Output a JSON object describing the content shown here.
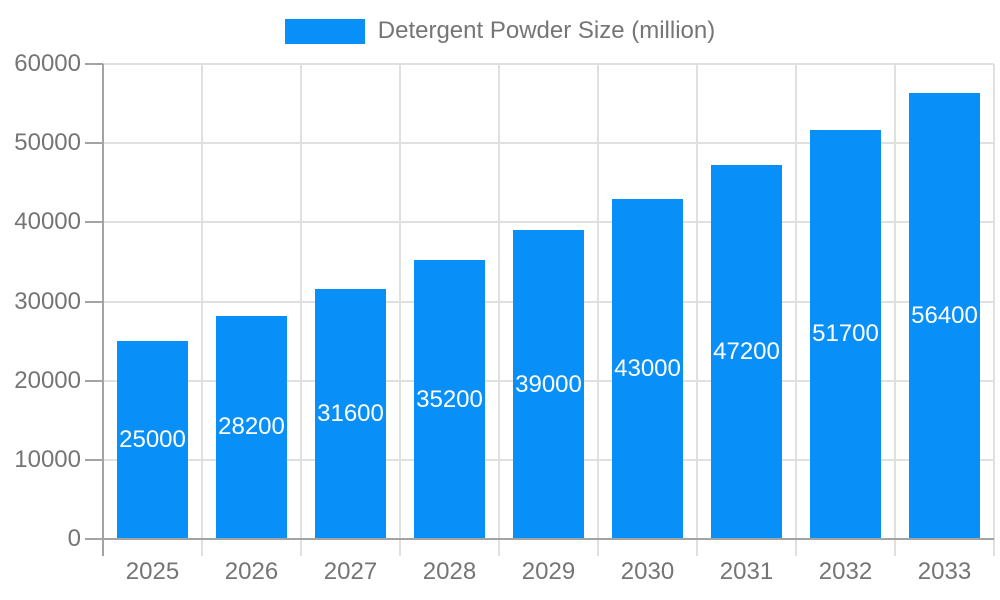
{
  "chart_data": {
    "type": "bar",
    "title": "Detergent Powder Size (million)",
    "legend": {
      "position": "top",
      "items": [
        {
          "label": "Detergent Powder Size (million)",
          "color": "#0890F8"
        }
      ]
    },
    "categories": [
      "2025",
      "2026",
      "2027",
      "2028",
      "2029",
      "2030",
      "2031",
      "2032",
      "2033"
    ],
    "series": [
      {
        "name": "Detergent Powder Size (million)",
        "values": [
          25000,
          28200,
          31600,
          35200,
          39000,
          43000,
          47200,
          51700,
          56400
        ]
      }
    ],
    "data_labels": [
      "25000",
      "28200",
      "31600",
      "35200",
      "39000",
      "43000",
      "47200",
      "51700",
      "56400"
    ],
    "xlabel": "",
    "ylabel": "",
    "ylim": [
      0,
      60000
    ],
    "yticks": [
      0,
      10000,
      20000,
      30000,
      40000,
      50000,
      60000
    ],
    "ytick_labels": [
      "0",
      "10000",
      "20000",
      "30000",
      "40000",
      "50000",
      "60000"
    ],
    "grid": true,
    "colors": {
      "bar": "#0890F8",
      "bar_label": "#FFFFFF",
      "axis": "#A3A3A3",
      "grid": "#E0E0E0",
      "text": "#757575",
      "background": "#FFFFFF"
    }
  }
}
